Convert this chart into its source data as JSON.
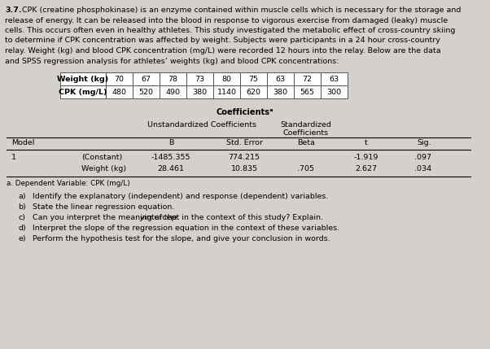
{
  "background_color": "#d4d1cc",
  "text_color": "#000000",
  "title_bold": "3.7.",
  "para_lines": [
    "3.7. CPK (creatine phosphokinase) is an enzyme contained within muscle cells which is necessary for the storage and",
    "release of energy. It can be released into the blood in response to vigorous exercise from damaged (leaky) muscle",
    "cells. This occurs often even in healthy athletes. This study investigated the metabolic effect of cross-country skiing",
    "to determine if CPK concentration was affected by weight. Subjects were participants in a 24 hour cross-country",
    "relay. Weight (kg) and blood CPK concentration (mg/L) were recorded 12 hours into the relay. Below are the data",
    "and SPSS regression analysis for athletes’ weights (kg) and blood CPK concentrations:"
  ],
  "data_table_headers": [
    "Weight (kg)",
    "70",
    "67",
    "78",
    "73",
    "80",
    "75",
    "63",
    "72",
    "63"
  ],
  "data_table_row2": [
    "CPK (mg/L)",
    "480",
    "520",
    "490",
    "380",
    "1140",
    "620",
    "380",
    "565",
    "300"
  ],
  "coeff_title": "Coefficientsᵃ",
  "footnote": "a. Dependent Variable: CPK (mg/L)",
  "questions": [
    [
      "a)",
      "Identify the explanatory (independent) and response (dependent) variables."
    ],
    [
      "b)",
      "State the linear regression equation."
    ],
    [
      "c)",
      "Can you interpret the meaning of the ",
      "y",
      "-intercept in the context of this study? Explain."
    ],
    [
      "d)",
      "Interpret the slope of the regression equation in the context of these variables."
    ],
    [
      "e)",
      "Perform the hypothesis test for the slope, and give your conclusion in words."
    ]
  ],
  "fs": 6.8,
  "fs_bold": 6.8
}
